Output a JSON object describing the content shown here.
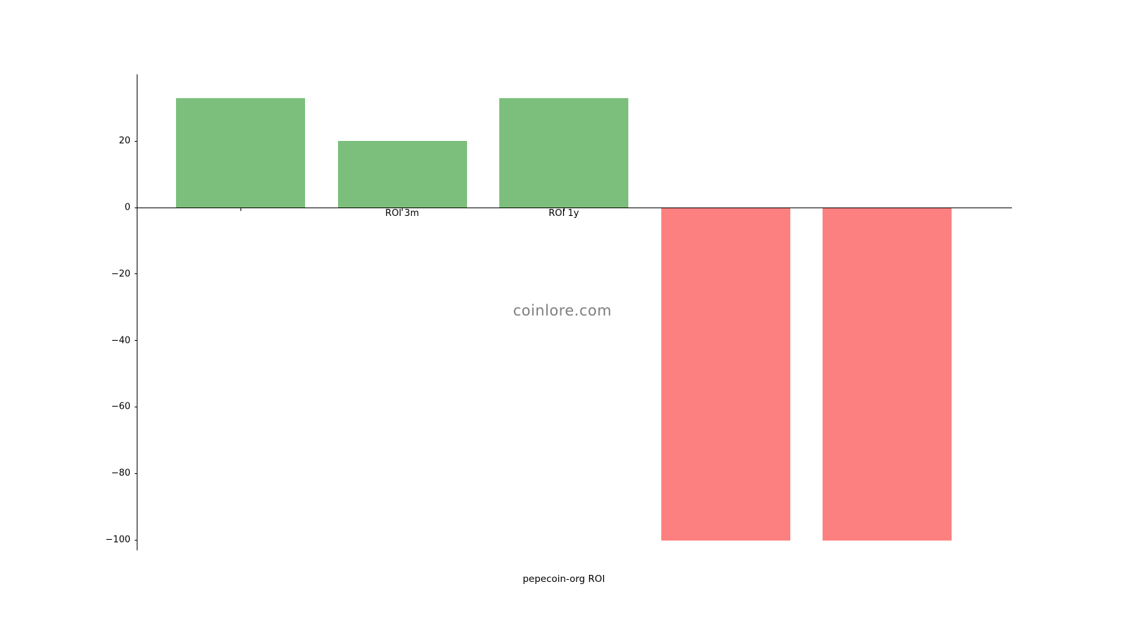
{
  "chart_data": {
    "type": "bar",
    "categories": [
      "",
      "ROI 3m",
      "ROI 1y",
      "",
      ""
    ],
    "values": [
      33,
      20,
      33,
      -100,
      -100
    ],
    "title": "pepecoin-org ROI",
    "xlabel": "",
    "ylabel": "",
    "ylim": [
      -103.2,
      40
    ],
    "yticks": [
      20,
      0,
      -20,
      -40,
      -60,
      -80,
      -100
    ],
    "grid": false,
    "legend": false,
    "positive_color": "#7cbf7c",
    "negative_color": "#fd8080",
    "axis_color": "#000000"
  },
  "watermark": {
    "text": "coinlore.com",
    "color": "#7f7f7f"
  },
  "footer": {
    "title": "pepecoin-org ROI"
  }
}
